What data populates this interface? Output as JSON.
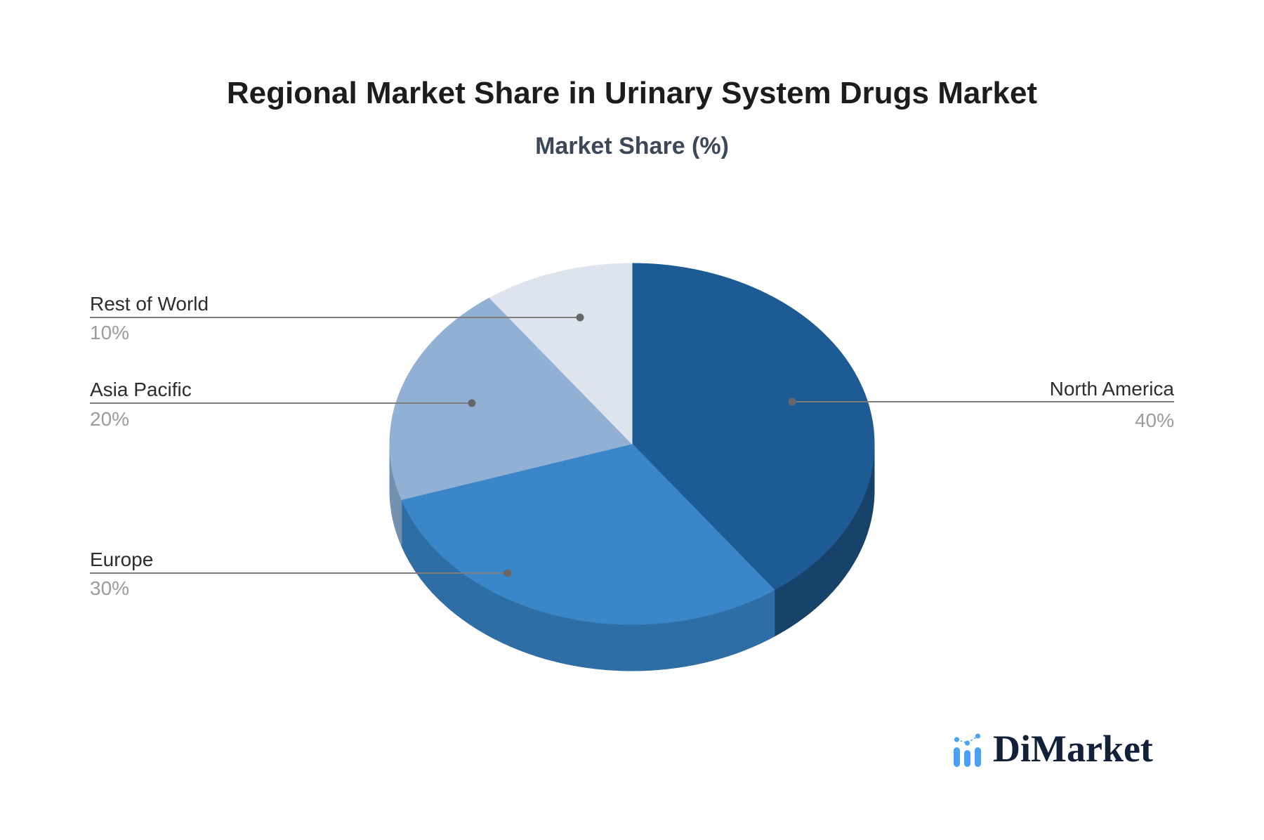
{
  "title": "Regional Market Share in Urinary System Drugs Market",
  "subtitle": "Market Share (%)",
  "logo": {
    "text": "DiMarket",
    "icon": "bar-chart-logo-icon"
  },
  "colors": {
    "background": "#ffffff",
    "title_text": "#1c1c1c",
    "subtitle_text": "#3c4858",
    "label_text": "#2d2d2d",
    "pct_text": "#9b9b9b",
    "leader_line": "#7e7e7e",
    "leader_dot": "#676767",
    "logo_text": "#13203a",
    "logo_accent": "#4aa1f3"
  },
  "chart_data": {
    "type": "pie",
    "style": "3d",
    "title": "Regional Market Share in Urinary System Drugs Market",
    "subtitle": "Market Share (%)",
    "unit": "%",
    "start_angle": "12-o-clock",
    "direction": "clockwise",
    "legend": "none, labels with leader lines",
    "slices": [
      {
        "label": "North America",
        "value": 40,
        "pct_label": "40%",
        "color": "#1e5b94",
        "side_color": "#17436a"
      },
      {
        "label": "Europe",
        "value": 30,
        "pct_label": "30%",
        "color": "#3a86c9",
        "side_color": "#2f6da5"
      },
      {
        "label": "Asia Pacific",
        "value": 20,
        "pct_label": "20%",
        "color": "#92afd4",
        "side_color": "#7390ae"
      },
      {
        "label": "Rest of World",
        "value": 10,
        "pct_label": "10%",
        "color": "#dde4ee",
        "side_color": "#b9c4d4"
      }
    ]
  }
}
